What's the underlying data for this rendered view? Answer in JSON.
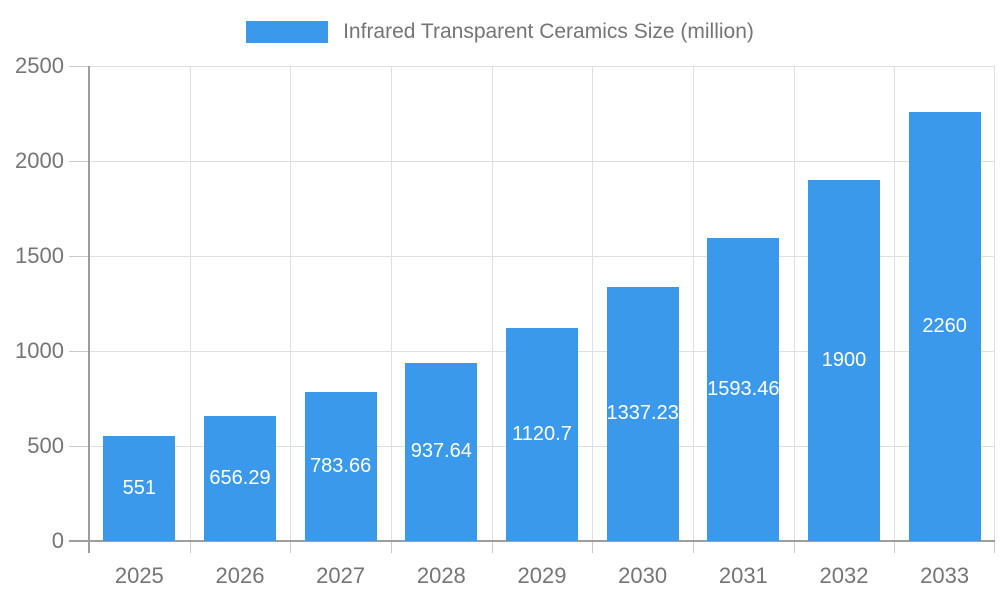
{
  "chart_data": {
    "type": "bar",
    "title": "",
    "legend_label": "Infrared Transparent Ceramics Size (million)",
    "legend_position": "top",
    "categories": [
      "2025",
      "2026",
      "2027",
      "2028",
      "2029",
      "2030",
      "2031",
      "2032",
      "2033"
    ],
    "series": [
      {
        "name": "Infrared Transparent Ceramics Size (million)",
        "values": [
          551,
          656.29,
          783.66,
          937.64,
          1120.7,
          1337.23,
          1593.46,
          1900,
          2260
        ]
      }
    ],
    "bar_labels": [
      "551",
      "656.29",
      "783.66",
      "937.64",
      "1120.7",
      "1337.23",
      "1593.46",
      "1900",
      "2260"
    ],
    "xlabel": "",
    "ylabel": "",
    "ylim": [
      0,
      2500
    ],
    "yticks": [
      "0",
      "500",
      "1000",
      "1500",
      "2000",
      "2500"
    ],
    "grid": true,
    "colors": {
      "bar": "#3B99EB",
      "grid_line": "#E0E0E0",
      "axis_line": "#9E9E9E",
      "tick_line": "#CBCBCB",
      "axis_text": "#757575",
      "legend_text": "#757575",
      "bar_label_text": "#FFFFFF",
      "background": "#FFFFFF"
    }
  }
}
